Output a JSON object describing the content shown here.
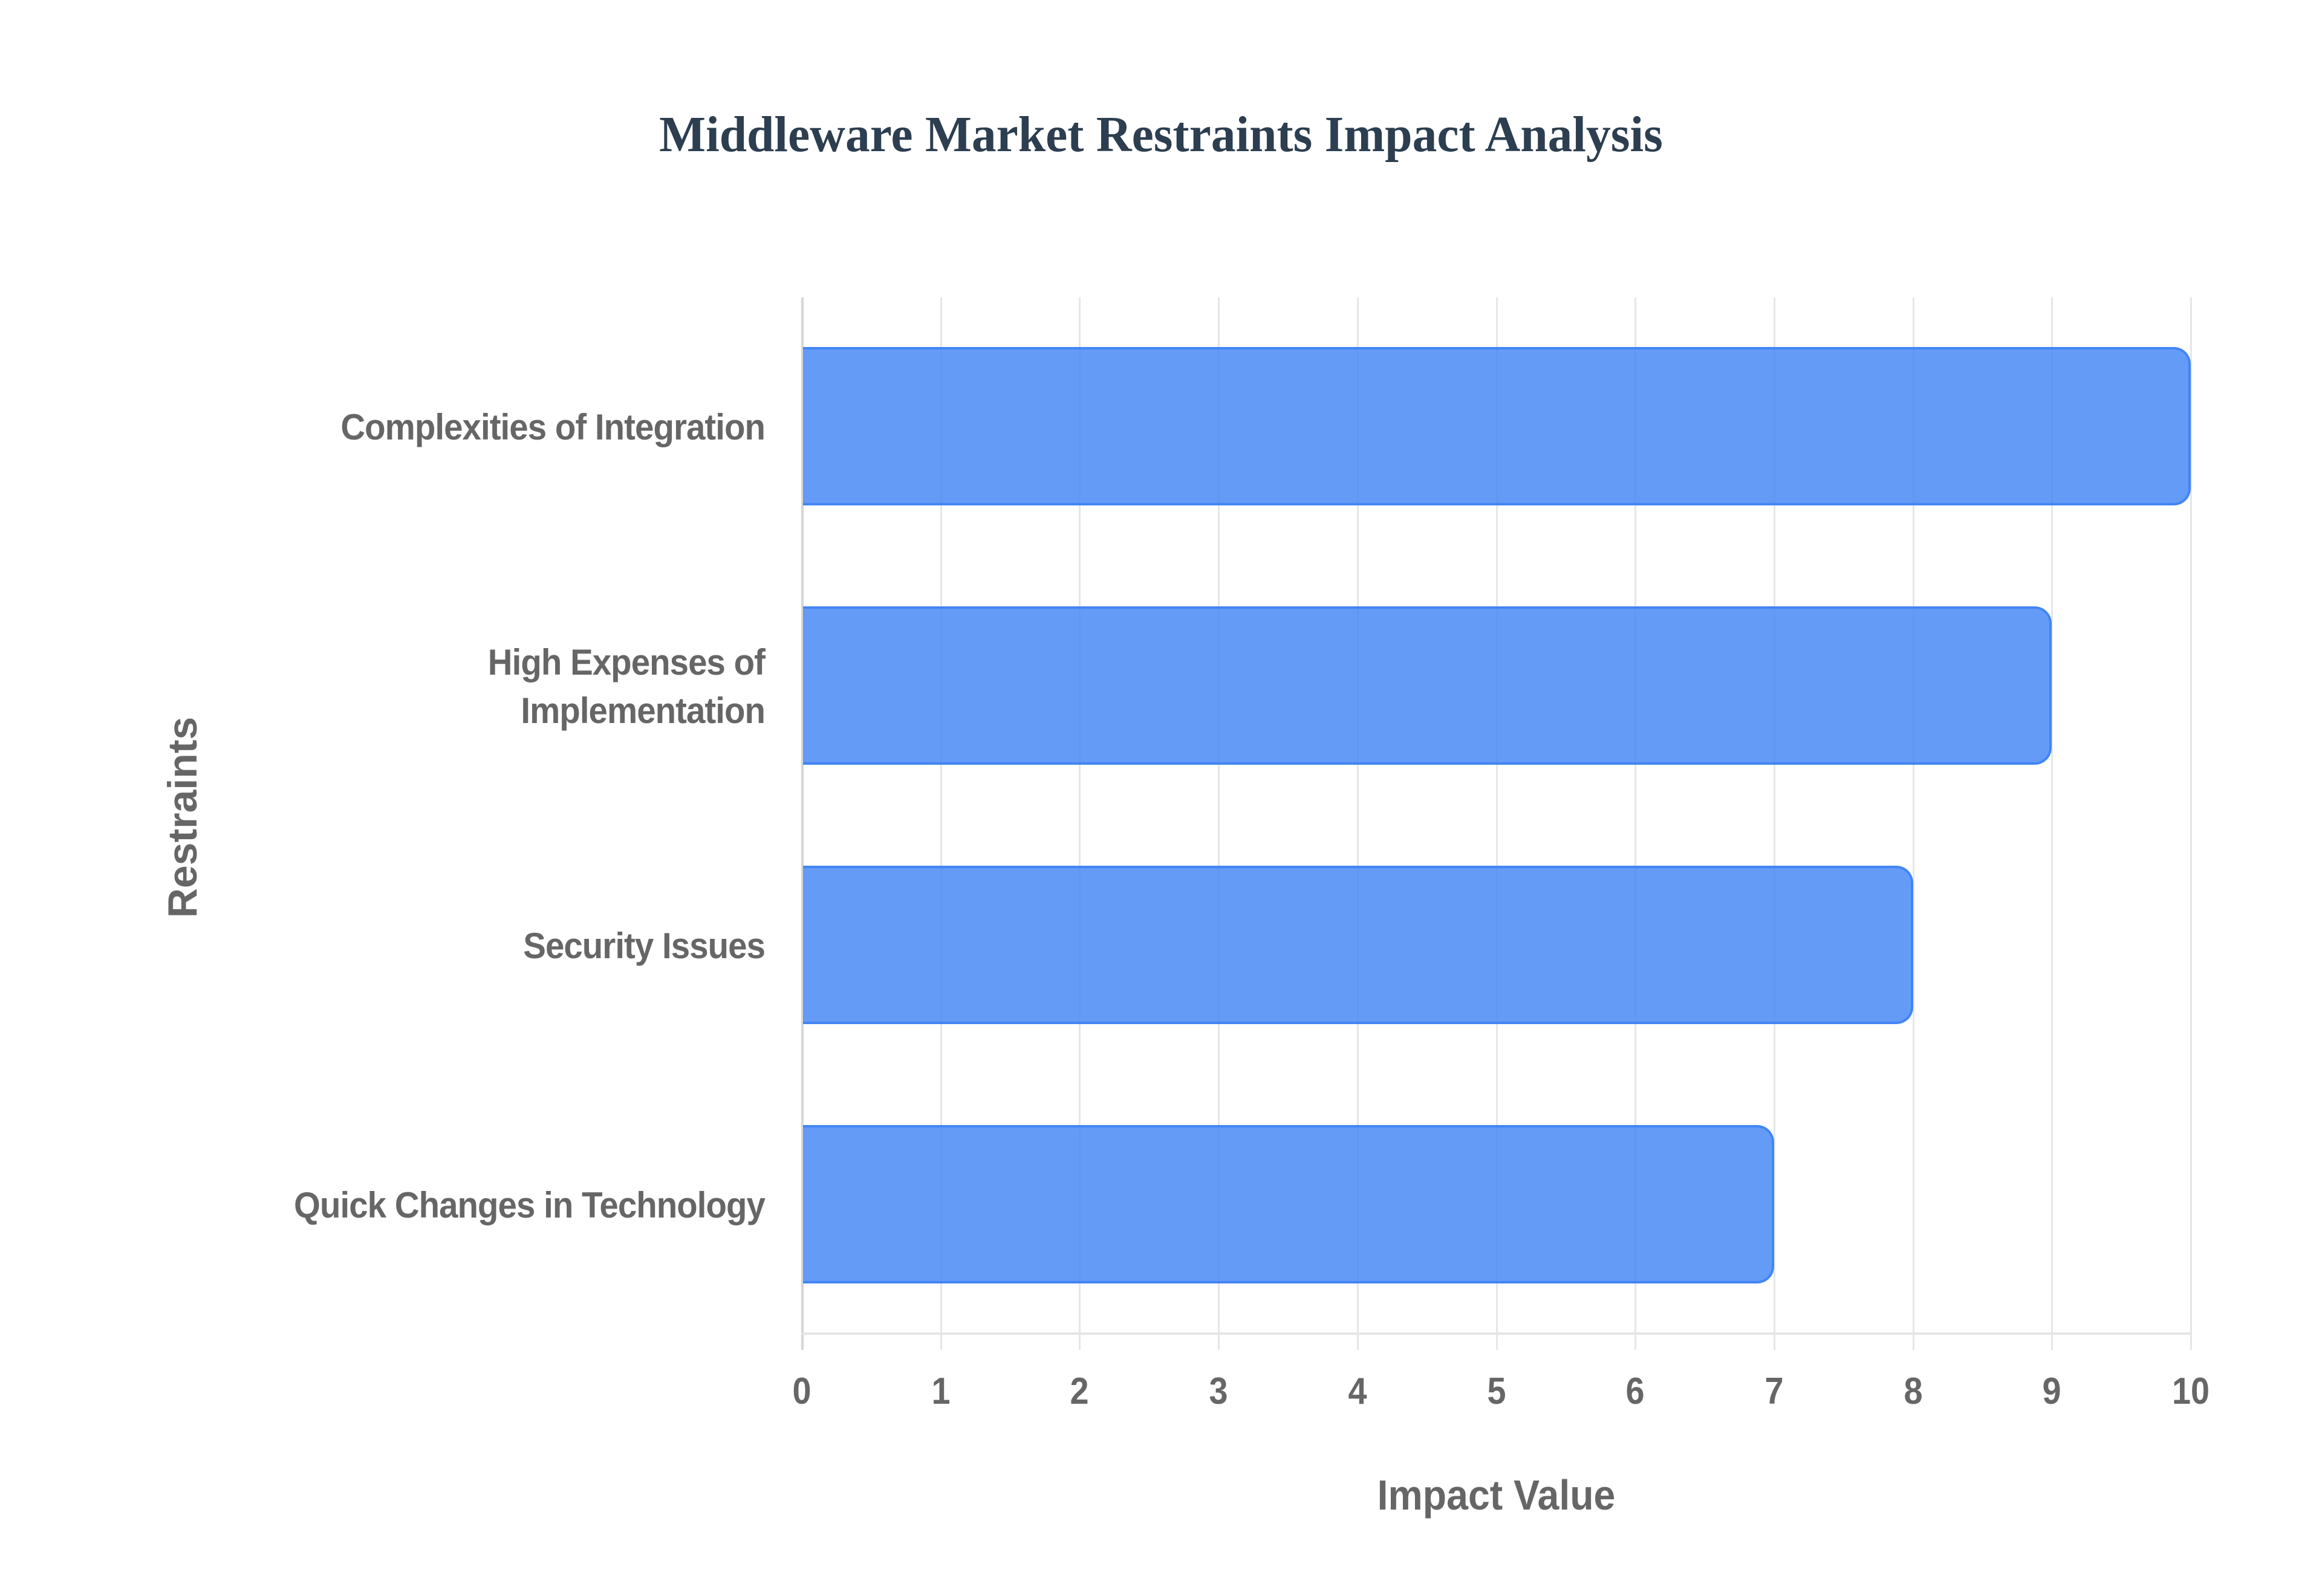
{
  "title": "Middleware Market Restraints Impact Analysis",
  "x_axis": {
    "title": "Impact Value",
    "ticks": [
      "0",
      "1",
      "2",
      "3",
      "4",
      "5",
      "6",
      "7",
      "8",
      "9",
      "10"
    ]
  },
  "y_axis": {
    "title": "Restraints"
  },
  "categories": [
    {
      "label": "Complexities of Integration",
      "value": 10
    },
    {
      "label": "High Expenses of\nImplementation",
      "value": 9
    },
    {
      "label": "Security Issues",
      "value": 8
    },
    {
      "label": "Quick Changes in Technology",
      "value": 7
    }
  ],
  "colors": {
    "bar_fill": "#6399f5",
    "bar_border": "#4285f4",
    "title": "#2c3e50",
    "axis_text": "#666666",
    "grid": "#e6e6e6"
  },
  "chart_data": {
    "type": "bar",
    "orientation": "horizontal",
    "title": "Middleware Market Restraints Impact Analysis",
    "xlabel": "Impact Value",
    "ylabel": "Restraints",
    "categories": [
      "Complexities of Integration",
      "High Expenses of Implementation",
      "Security Issues",
      "Quick Changes in Technology"
    ],
    "values": [
      10,
      9,
      8,
      7
    ],
    "xlim": [
      0,
      10
    ],
    "x_ticks": [
      0,
      1,
      2,
      3,
      4,
      5,
      6,
      7,
      8,
      9,
      10
    ],
    "grid": true,
    "legend": null
  }
}
